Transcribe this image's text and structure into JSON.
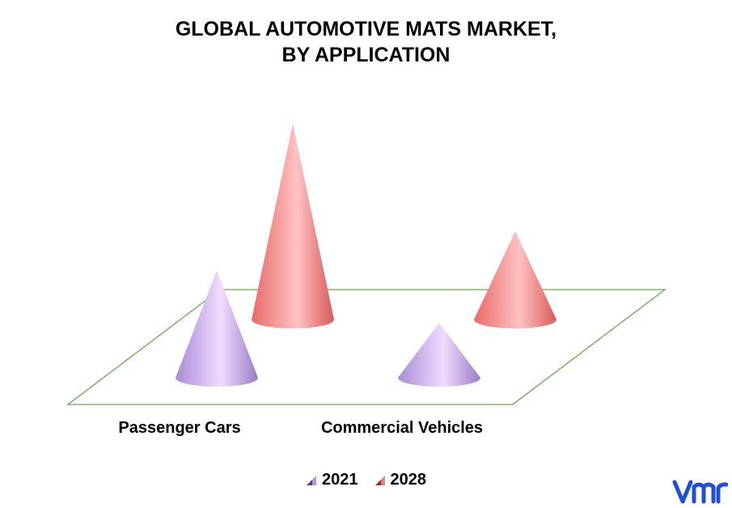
{
  "title": {
    "line1": "GLOBAL AUTOMOTIVE MATS MARKET,",
    "line2": "BY APPLICATION"
  },
  "chart_data": {
    "type": "bar",
    "shape": "cone",
    "categories": [
      "Passenger Cars",
      "Commercial Vehicles"
    ],
    "series": [
      {
        "name": "2021",
        "values": [
          45,
          23
        ],
        "color": "#c9a6ee"
      },
      {
        "name": "2028",
        "values": [
          82,
          37
        ],
        "color": "#f07c7c"
      }
    ],
    "ylim": [
      0,
      100
    ],
    "grid": false,
    "legend_placement": "bottom",
    "floor_color": "#6aa84f"
  },
  "logo": {
    "text": "vmr",
    "color": "#1f4fd8"
  }
}
